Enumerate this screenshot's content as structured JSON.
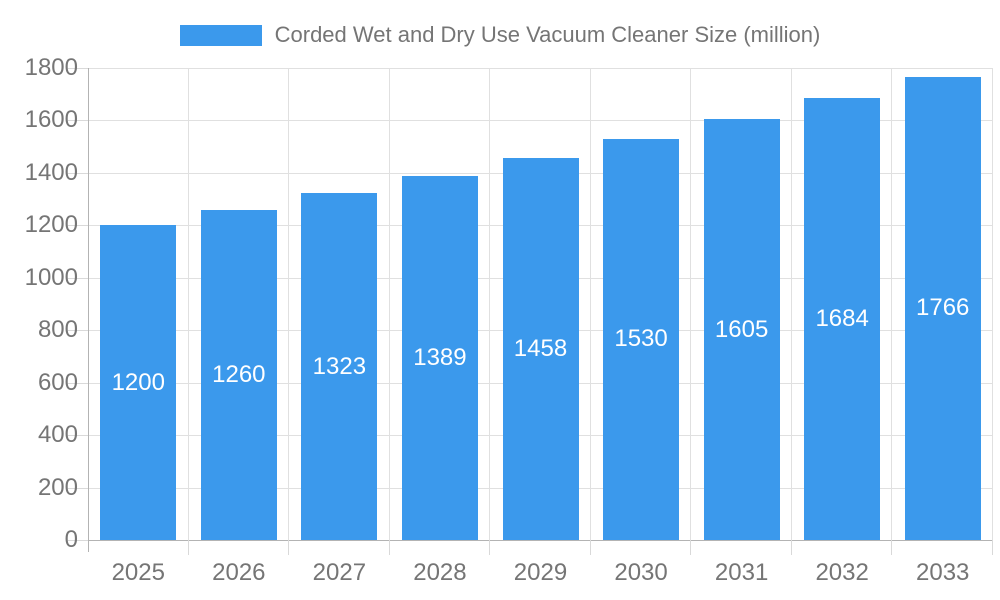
{
  "legend": {
    "label": "Corded Wet and Dry Use Vacuum Cleaner Size (million)"
  },
  "chart_data": {
    "type": "bar",
    "title": "Corded Wet and Dry Use Vacuum Cleaner Size (million)",
    "categories": [
      "2025",
      "2026",
      "2027",
      "2028",
      "2029",
      "2030",
      "2031",
      "2032",
      "2033"
    ],
    "values": [
      1200,
      1260,
      1323,
      1389,
      1458,
      1530,
      1605,
      1684,
      1766
    ],
    "xlabel": "",
    "ylabel": "",
    "ylim": [
      0,
      1800
    ],
    "ytick_step": 200,
    "yticks": [
      0,
      200,
      400,
      600,
      800,
      1000,
      1200,
      1400,
      1600,
      1800
    ],
    "grid": true,
    "legend_position": "top",
    "value_labels_inside_bars": true
  },
  "colors": {
    "bar": "#3b99ec",
    "bar_label": "#ffffff",
    "axis_text": "#757575",
    "gridline": "#e0e0e0",
    "tick": "#d9d9d9",
    "axis_line": "#b3b3b3",
    "background": "#ffffff"
  }
}
